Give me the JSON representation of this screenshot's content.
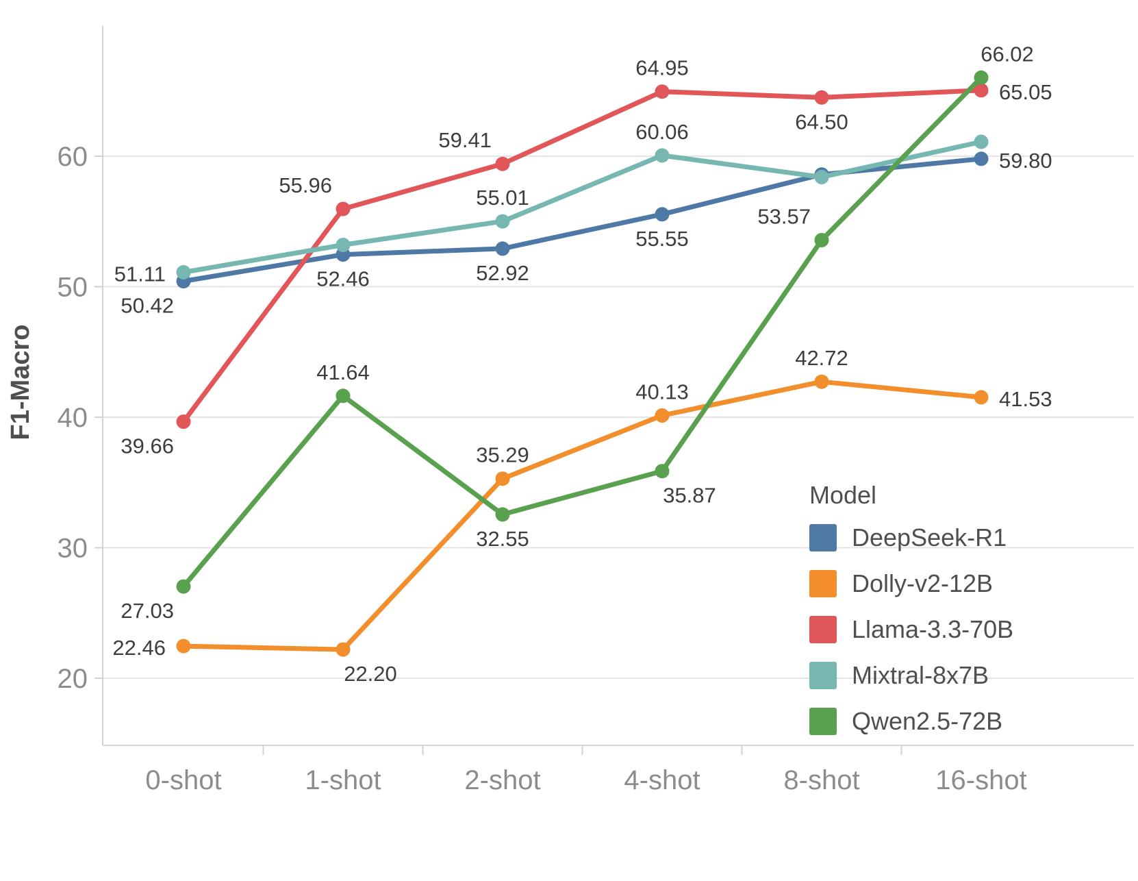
{
  "chart_data": {
    "type": "line",
    "title": "",
    "xlabel": "",
    "ylabel": "F1-Macro",
    "categories": [
      "0-shot",
      "1-shot",
      "2-shot",
      "4-shot",
      "8-shot",
      "16-shot"
    ],
    "y_ticks": [
      20,
      30,
      40,
      50,
      60
    ],
    "ylim": [
      15,
      70
    ],
    "grid": "horizontal",
    "legend_title": "Model",
    "legend_position": "inside-bottom-right",
    "series": [
      {
        "name": "DeepSeek-R1",
        "color": "#4e79a7",
        "values": [
          50.42,
          52.46,
          52.92,
          55.55,
          58.6,
          59.8
        ],
        "point_labels": [
          "50.42",
          "52.46",
          "52.92",
          "55.55",
          "",
          "59.80"
        ],
        "label_positions": [
          "below-left",
          "below",
          "below",
          "below",
          "none",
          "right"
        ]
      },
      {
        "name": "Dolly-v2-12B",
        "color": "#f28e2b",
        "values": [
          22.46,
          22.2,
          35.29,
          40.13,
          42.72,
          41.53
        ],
        "point_labels": [
          "22.46",
          "22.20",
          "35.29",
          "40.13",
          "42.72",
          "41.53"
        ],
        "label_positions": [
          "left",
          "below-right",
          "above",
          "above",
          "above",
          "right"
        ]
      },
      {
        "name": "Llama-3.3-70B",
        "color": "#e15759",
        "values": [
          39.66,
          55.96,
          59.41,
          64.95,
          64.5,
          65.05
        ],
        "point_labels": [
          "39.66",
          "55.96",
          "59.41",
          "64.95",
          "64.50",
          "65.05"
        ],
        "label_positions": [
          "below-left",
          "above-left",
          "above-left",
          "above",
          "below",
          "right"
        ]
      },
      {
        "name": "Mixtral-8x7B",
        "color": "#76b7b2",
        "values": [
          51.11,
          53.2,
          55.01,
          60.06,
          58.4,
          61.1
        ],
        "point_labels": [
          "51.11",
          "",
          "55.01",
          "60.06",
          "",
          ""
        ],
        "label_positions": [
          "left",
          "none",
          "above",
          "above",
          "none",
          "none"
        ]
      },
      {
        "name": "Qwen2.5-72B",
        "color": "#59a14f",
        "values": [
          27.03,
          41.64,
          32.55,
          35.87,
          53.57,
          66.02
        ],
        "point_labels": [
          "27.03",
          "41.64",
          "32.55",
          "35.87",
          "53.57",
          "66.02"
        ],
        "label_positions": [
          "below-left",
          "above",
          "below",
          "below-right",
          "above-left",
          "above-right"
        ]
      }
    ]
  }
}
